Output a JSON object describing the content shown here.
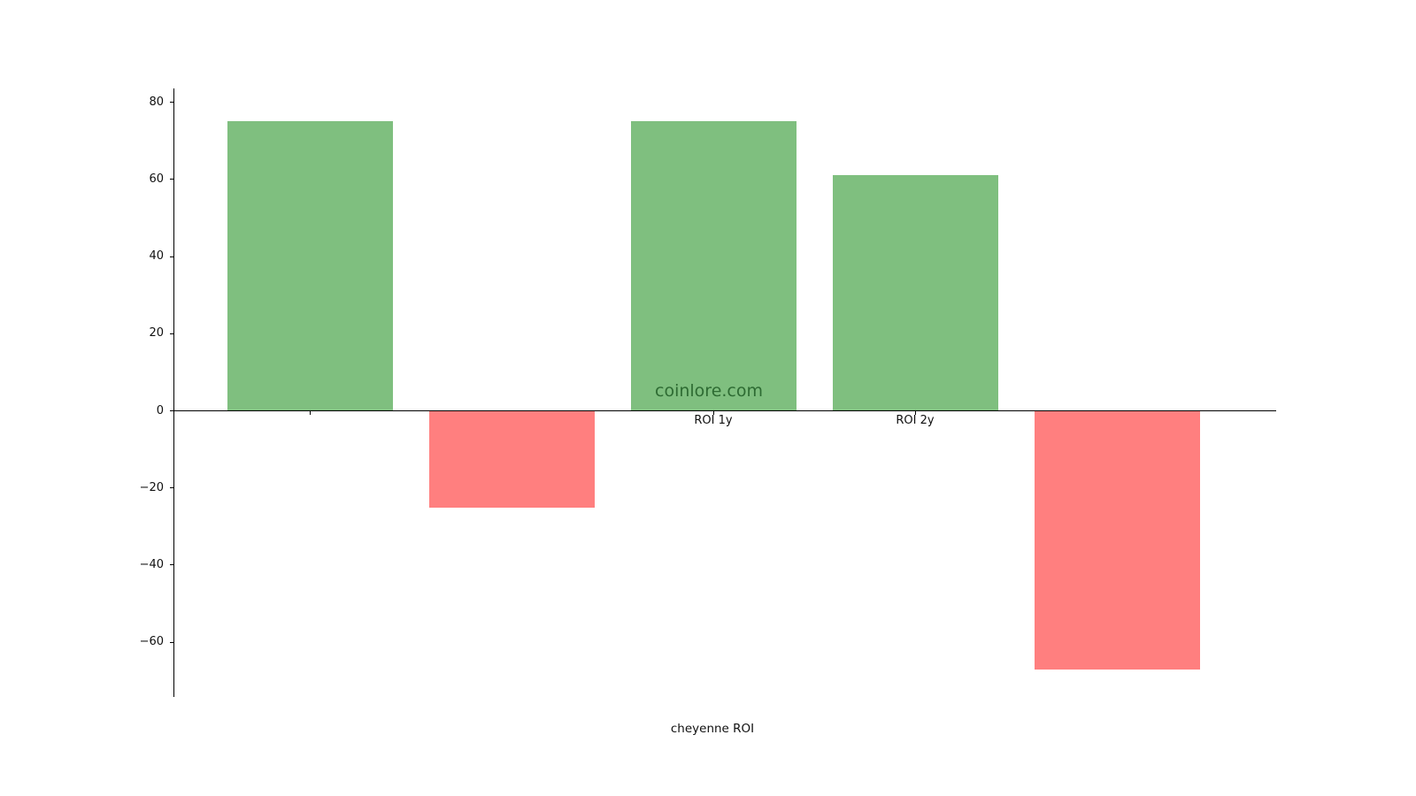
{
  "chart_data": {
    "type": "bar",
    "title": "",
    "xlabel": "cheyenne ROI",
    "ylabel": "",
    "categories": [
      "",
      "",
      "ROI 1y",
      "ROI 2y",
      ""
    ],
    "values": [
      75,
      -25,
      75,
      61,
      -67
    ],
    "ytick_values": [
      80,
      60,
      40,
      20,
      0,
      -20,
      -40,
      -60
    ],
    "ytick_labels": [
      "80",
      "60",
      "40",
      "20",
      "0",
      "−20",
      "−40",
      "−60"
    ],
    "ylim": [
      -74,
      83
    ],
    "grid": false,
    "legend_position": "none",
    "positive_color": "#7fbf7f",
    "negative_color": "#ff7f7f",
    "axis_color": "#000000",
    "tick_label_color": "#111111",
    "watermark": "coinlore.com",
    "watermark_color": "#2e6b33"
  }
}
